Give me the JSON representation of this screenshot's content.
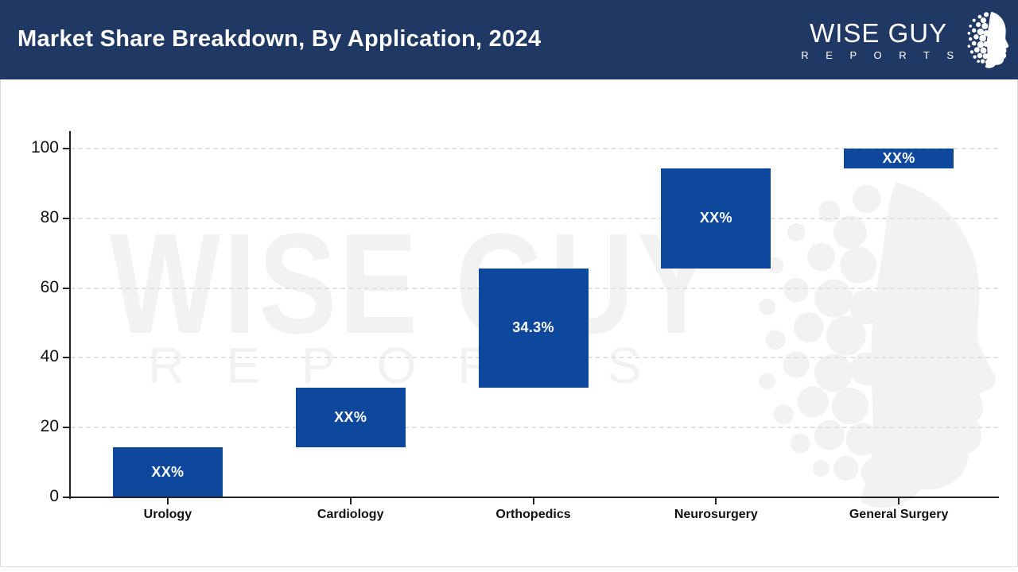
{
  "header": {
    "title": "Market Share Breakdown, By Application, 2024",
    "brand": {
      "line1": "WISE GUY",
      "line2": "R E P O R T S"
    }
  },
  "watermark": {
    "line1": "WISE GUY",
    "line2": "REPORTS"
  },
  "colors": {
    "header_bg": "#203864",
    "bar": "#0d489c",
    "grid": "#e2e2e2",
    "axis": "#222222",
    "watermark": "#f2f2f2",
    "bar_label": "#ffffff",
    "title_text": "#ffffff"
  },
  "chart_data": {
    "type": "bar",
    "subtype": "waterfall",
    "title": "Market Share Breakdown, By Application, 2024",
    "xlabel": "",
    "ylabel": "",
    "ylim": [
      0,
      100
    ],
    "yticks": [
      0,
      20,
      40,
      60,
      80,
      100
    ],
    "grid": true,
    "gridstyle": "dashed",
    "legend": false,
    "categories": [
      "Urology",
      "Cardiology",
      "Orthopedics",
      "Neurosurgery",
      "General Surgery"
    ],
    "bars": [
      {
        "category": "Urology",
        "start": 0,
        "end": 14.3,
        "increment": 14.3,
        "label": "XX%"
      },
      {
        "category": "Cardiology",
        "start": 14.3,
        "end": 31.4,
        "increment": 17.1,
        "label": "XX%"
      },
      {
        "category": "Orthopedics",
        "start": 31.4,
        "end": 65.7,
        "increment": 34.3,
        "label": "34.3%"
      },
      {
        "category": "Neurosurgery",
        "start": 65.7,
        "end": 94.3,
        "increment": 28.6,
        "label": "XX%"
      },
      {
        "category": "General Surgery",
        "start": 94.3,
        "end": 100,
        "increment": 5.7,
        "label": "XX%"
      }
    ]
  }
}
